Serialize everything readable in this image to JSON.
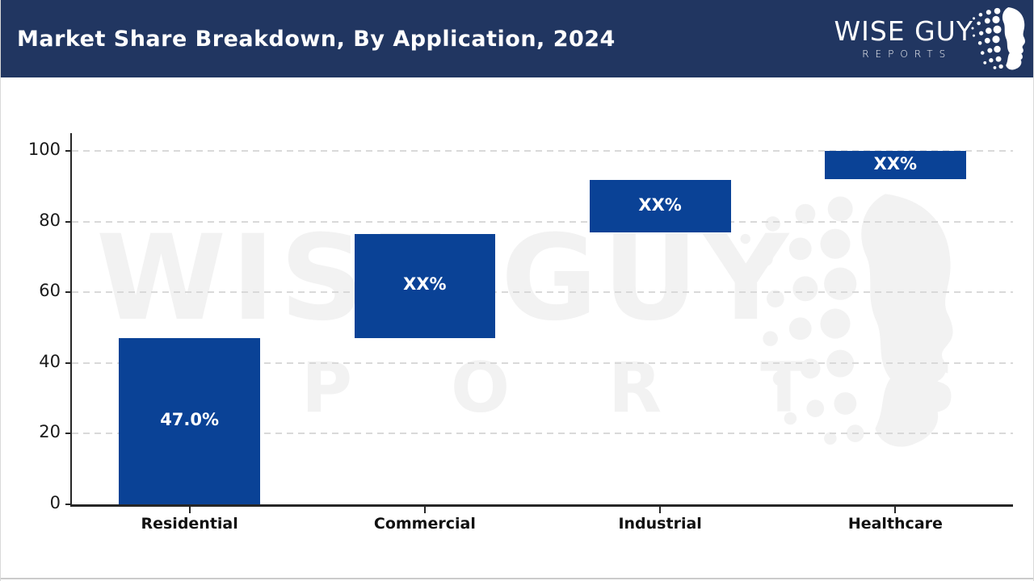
{
  "header": {
    "title": "Market Share Breakdown, By Application, 2024",
    "bg_color": "#213661",
    "logo": {
      "line1": "WISE GUY",
      "line2": "REPORTS"
    }
  },
  "watermark": {
    "line1": "WISE GUY",
    "line2": "P O R T S"
  },
  "chart_data": {
    "type": "bar",
    "subtype": "waterfall",
    "title": "Market Share Breakdown, By Application, 2024",
    "categories": [
      "Residential",
      "Commercial",
      "Industrial",
      "Healthcare"
    ],
    "segments": [
      {
        "category": "Residential",
        "start": 0,
        "end": 47.0,
        "label": "47.0%"
      },
      {
        "category": "Commercial",
        "start": 47.0,
        "end": 76.5,
        "label": "XX%"
      },
      {
        "category": "Industrial",
        "start": 76.9,
        "end": 91.7,
        "label": "XX%"
      },
      {
        "category": "Healthcare",
        "start": 91.9,
        "end": 100.0,
        "label": "XX%"
      }
    ],
    "y_ticks": [
      0,
      20,
      40,
      60,
      80,
      100
    ],
    "ylim": [
      0,
      105
    ],
    "xlabel": "",
    "ylabel": "",
    "grid": "horizontal-dashed",
    "legend": "none",
    "bar_color": "#0a4296",
    "gridline_color": "#d9d9d9",
    "axis_color": "#262626"
  }
}
